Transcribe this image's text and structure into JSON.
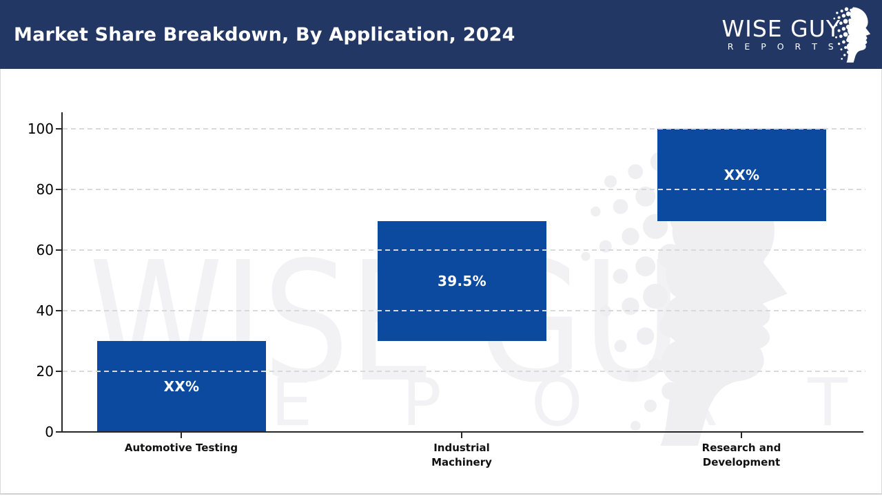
{
  "header": {
    "title": "Market Share Breakdown, By Application, 2024",
    "logo_line1": "WISE GUY",
    "logo_line2": "R E P O R T S"
  },
  "watermark": {
    "line1": "WISE GUY",
    "line2": "R E P O R T S"
  },
  "chart_data": {
    "type": "bar",
    "subtype": "floating-segment-breakdown",
    "title": "Market Share Breakdown, By Application, 2024",
    "categories": [
      "Automotive Testing",
      "Industrial Machinery",
      "Research and Development"
    ],
    "categories_display": [
      "Automotive Testing",
      "Industrial\nMachinery",
      "Research and\nDevelopment"
    ],
    "segments": [
      {
        "category": "Automotive Testing",
        "start": 0,
        "end": 30,
        "label": "XX%"
      },
      {
        "category": "Industrial Machinery",
        "start": 30,
        "end": 69.5,
        "label": "39.5%"
      },
      {
        "category": "Research and Development",
        "start": 69.5,
        "end": 100,
        "label": "XX%"
      }
    ],
    "ylim": [
      0,
      100
    ],
    "yticks": [
      0,
      20,
      40,
      60,
      80,
      100
    ],
    "ytick_labels": [
      "100",
      "80",
      "60",
      "40",
      "20",
      "0"
    ],
    "xlabel": "",
    "ylabel": "",
    "grid": "horizontal-dashed",
    "legend": "none"
  },
  "colors": {
    "header_bg": "#233764",
    "bar": "#0B4A9E",
    "axis": "#262626",
    "gridline": "#d9d9d9",
    "watermark": "#f2f2f4",
    "label_on_bar": "#ffffff"
  }
}
